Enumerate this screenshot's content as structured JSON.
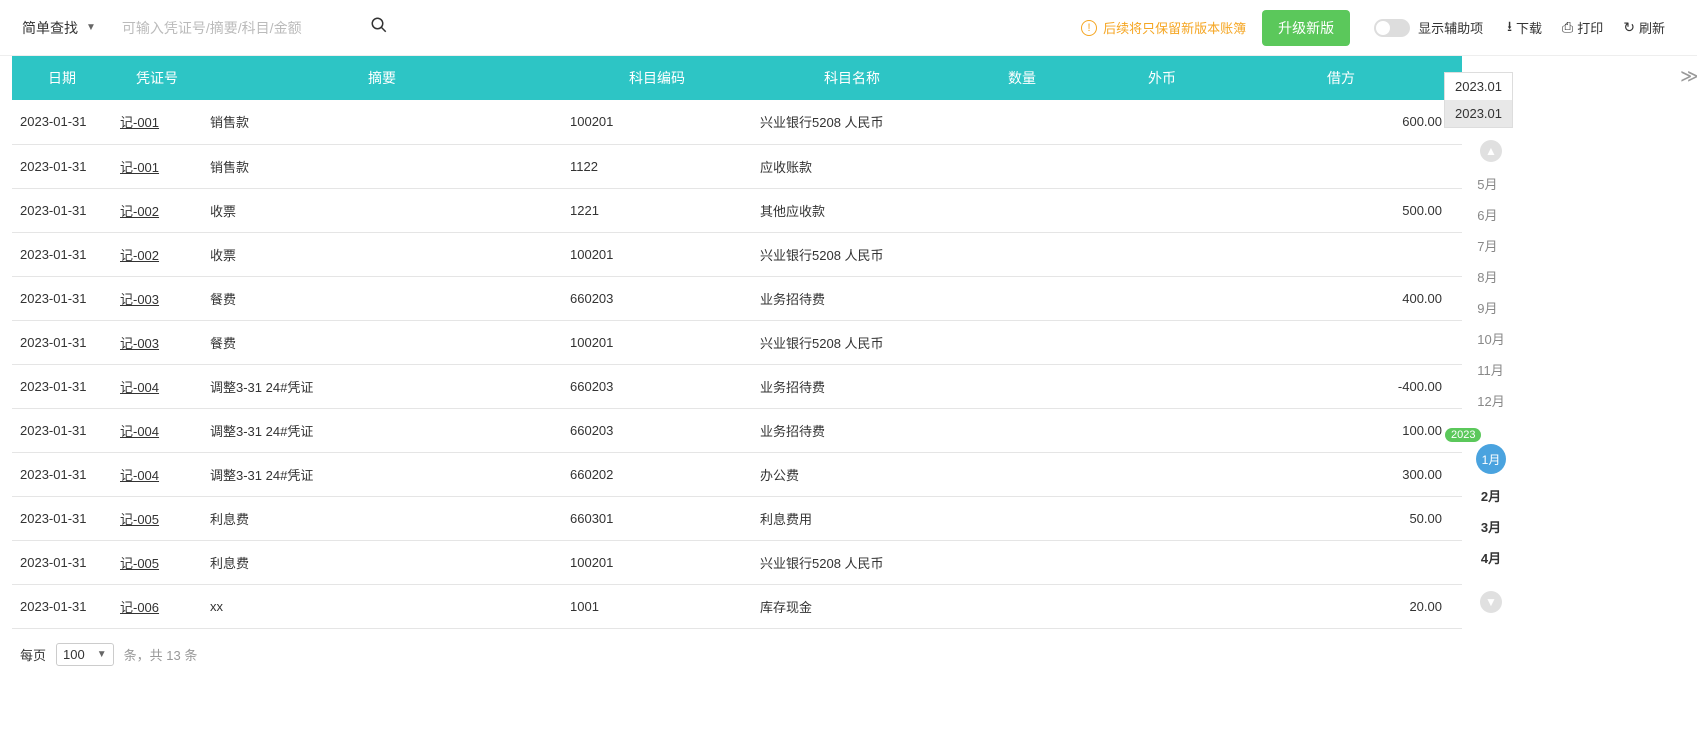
{
  "toolbar": {
    "search_type": "简单查找",
    "search_placeholder": "可输入凭证号/摘要/科目/金额",
    "notice": "后续将只保留新版本账簿",
    "upgrade": "升级新版",
    "show_aux": "显示辅助项",
    "download": "下载",
    "print": "打印",
    "refresh": "刷新"
  },
  "columns": {
    "date": "日期",
    "voucher": "凭证号",
    "summary": "摘要",
    "code": "科目编码",
    "name": "科目名称",
    "qty": "数量",
    "fx": "外币",
    "debit": "借方"
  },
  "rows": [
    {
      "date": "2023-01-31",
      "voucher": "记-001",
      "summary": "销售款",
      "code": "100201",
      "name": "兴业银行5208 人民币",
      "qty": "",
      "fx": "",
      "debit": "600.00"
    },
    {
      "date": "2023-01-31",
      "voucher": "记-001",
      "summary": "销售款",
      "code": "1122",
      "name": "应收账款",
      "qty": "",
      "fx": "",
      "debit": ""
    },
    {
      "date": "2023-01-31",
      "voucher": "记-002",
      "summary": "收票",
      "code": "1221",
      "name": "其他应收款",
      "qty": "",
      "fx": "",
      "debit": "500.00"
    },
    {
      "date": "2023-01-31",
      "voucher": "记-002",
      "summary": "收票",
      "code": "100201",
      "name": "兴业银行5208 人民币",
      "qty": "",
      "fx": "",
      "debit": ""
    },
    {
      "date": "2023-01-31",
      "voucher": "记-003",
      "summary": "餐费",
      "code": "660203",
      "name": "业务招待费",
      "qty": "",
      "fx": "",
      "debit": "400.00"
    },
    {
      "date": "2023-01-31",
      "voucher": "记-003",
      "summary": "餐费",
      "code": "100201",
      "name": "兴业银行5208 人民币",
      "qty": "",
      "fx": "",
      "debit": ""
    },
    {
      "date": "2023-01-31",
      "voucher": "记-004",
      "summary": "调整3-31 24#凭证",
      "code": "660203",
      "name": "业务招待费",
      "qty": "",
      "fx": "",
      "debit": "-400.00"
    },
    {
      "date": "2023-01-31",
      "voucher": "记-004",
      "summary": "调整3-31 24#凭证",
      "code": "660203",
      "name": "业务招待费",
      "qty": "",
      "fx": "",
      "debit": "100.00"
    },
    {
      "date": "2023-01-31",
      "voucher": "记-004",
      "summary": "调整3-31 24#凭证",
      "code": "660202",
      "name": "办公费",
      "qty": "",
      "fx": "",
      "debit": "300.00"
    },
    {
      "date": "2023-01-31",
      "voucher": "记-005",
      "summary": "利息费",
      "code": "660301",
      "name": "利息费用",
      "qty": "",
      "fx": "",
      "debit": "50.00"
    },
    {
      "date": "2023-01-31",
      "voucher": "记-005",
      "summary": "利息费",
      "code": "100201",
      "name": "兴业银行5208 人民币",
      "qty": "",
      "fx": "",
      "debit": ""
    },
    {
      "date": "2023-01-31",
      "voucher": "记-006",
      "summary": "xx",
      "code": "1001",
      "name": "库存现金",
      "qty": "",
      "fx": "",
      "debit": "20.00"
    }
  ],
  "date_range": [
    "2023.01",
    "2023.01"
  ],
  "months_top": [
    "5月",
    "6月",
    "7月",
    "8月",
    "9月",
    "10月",
    "11月",
    "12月"
  ],
  "year_badge": "2023",
  "current_month": "1月",
  "months_bottom": [
    "2月",
    "3月",
    "4月"
  ],
  "pager": {
    "per_label": "每页",
    "size": "100",
    "total_prefix": "条，共",
    "total_count": "13",
    "total_suffix": "条"
  }
}
